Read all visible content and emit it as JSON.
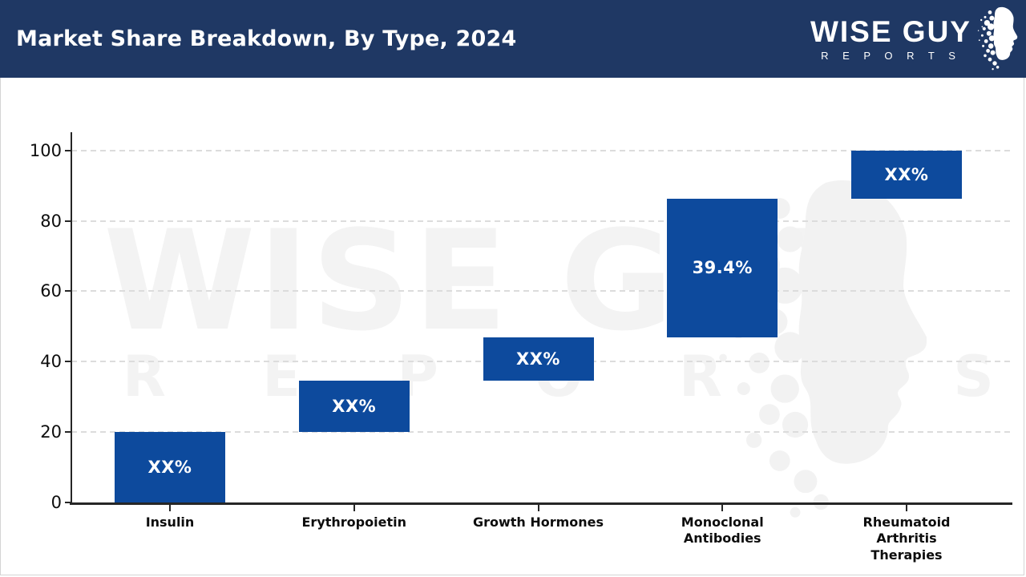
{
  "header": {
    "title": "Market Share Breakdown, By Type, 2024",
    "logo": {
      "name": "WISE GUY",
      "tagline": "R E P O R T S"
    }
  },
  "watermark": {
    "name": "WISE GUY",
    "tagline": "R E P O R T S"
  },
  "chart_data": {
    "type": "bar",
    "subtype": "floating-waterfall",
    "title": "Market Share Breakdown, By Type, 2024",
    "categories": [
      "Insulin",
      "Erythropoietin",
      "Growth Hormones",
      "Monoclonal Antibodies",
      "Rheumatoid Arthritis Therapies"
    ],
    "category_label_lines": [
      [
        "Insulin"
      ],
      [
        "Erythropoietin"
      ],
      [
        "Growth Hormones"
      ],
      [
        "Monoclonal",
        "Antibodies"
      ],
      [
        "Rheumatoid",
        "Arthritis",
        "Therapies"
      ]
    ],
    "segments": [
      {
        "category": "Insulin",
        "start": 0,
        "end": 20,
        "label": "XX%"
      },
      {
        "category": "Erythropoietin",
        "start": 20,
        "end": 34.6,
        "label": "XX%"
      },
      {
        "category": "Growth Hormones",
        "start": 34.6,
        "end": 46.9,
        "label": "XX%"
      },
      {
        "category": "Monoclonal Antibodies",
        "start": 46.9,
        "end": 86.3,
        "label": "39.4%"
      },
      {
        "category": "Rheumatoid Arthritis Therapies",
        "start": 86.3,
        "end": 100,
        "label": "XX%"
      }
    ],
    "ylim": [
      0,
      100
    ],
    "yticks": [
      0,
      20,
      40,
      60,
      80,
      100
    ],
    "grid": "horizontal-dashed",
    "legend": "none",
    "xlabel": "",
    "ylabel": ""
  },
  "colors": {
    "header_bg": "#1f3864",
    "bar": "#0d4a9d",
    "axis": "#262626",
    "grid": "#dcdcdc",
    "watermark": "#f2f2f2",
    "bar_label": "#ffffff"
  }
}
